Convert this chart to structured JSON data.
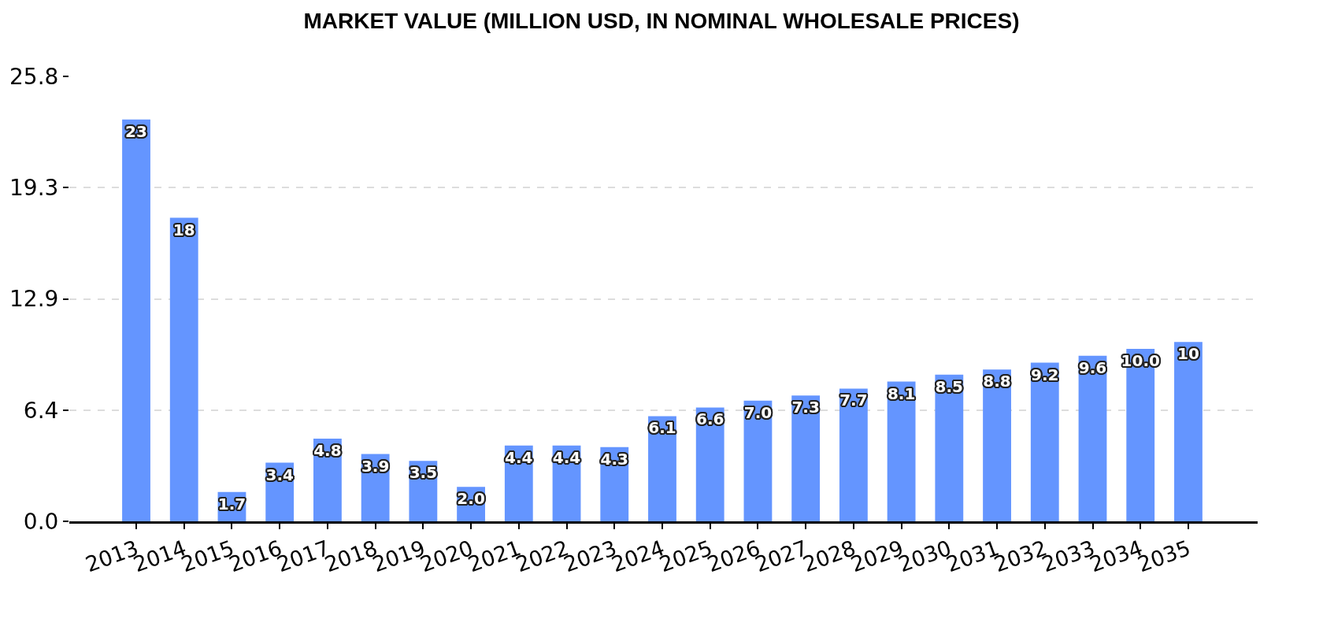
{
  "chart_data": {
    "type": "bar",
    "title": "MARKET VALUE (MILLION USD, IN NOMINAL WHOLESALE PRICES)",
    "categories": [
      "2013",
      "2014",
      "2015",
      "2016",
      "2017",
      "2018",
      "2019",
      "2020",
      "2021",
      "2022",
      "2023",
      "2024",
      "2025",
      "2026",
      "2027",
      "2028",
      "2029",
      "2030",
      "2031",
      "2032",
      "2033",
      "2034",
      "2035"
    ],
    "values": [
      23.3,
      17.6,
      1.7,
      3.4,
      4.8,
      3.9,
      3.5,
      2.0,
      4.4,
      4.4,
      4.3,
      6.1,
      6.6,
      7.0,
      7.3,
      7.7,
      8.1,
      8.5,
      8.8,
      9.2,
      9.6,
      10.0,
      10.4
    ],
    "value_labels": [
      "23",
      "18",
      "1.7",
      "3.4",
      "4.8",
      "3.9",
      "3.5",
      "2.0",
      "4.4",
      "4.4",
      "4.3",
      "6.1",
      "6.6",
      "7.0",
      "7.3",
      "7.7",
      "8.1",
      "8.5",
      "8.8",
      "9.2",
      "9.6",
      "10.0",
      "10"
    ],
    "color": "#6495ff",
    "ylim": [
      0,
      25.8
    ],
    "yticks": [
      {
        "value": 0,
        "label": "0.0"
      },
      {
        "value": 6.45,
        "label": "6.4"
      },
      12.9,
      {
        "value": 19.35,
        "label": "19.3"
      },
      25.8
    ],
    "grid": "y"
  }
}
